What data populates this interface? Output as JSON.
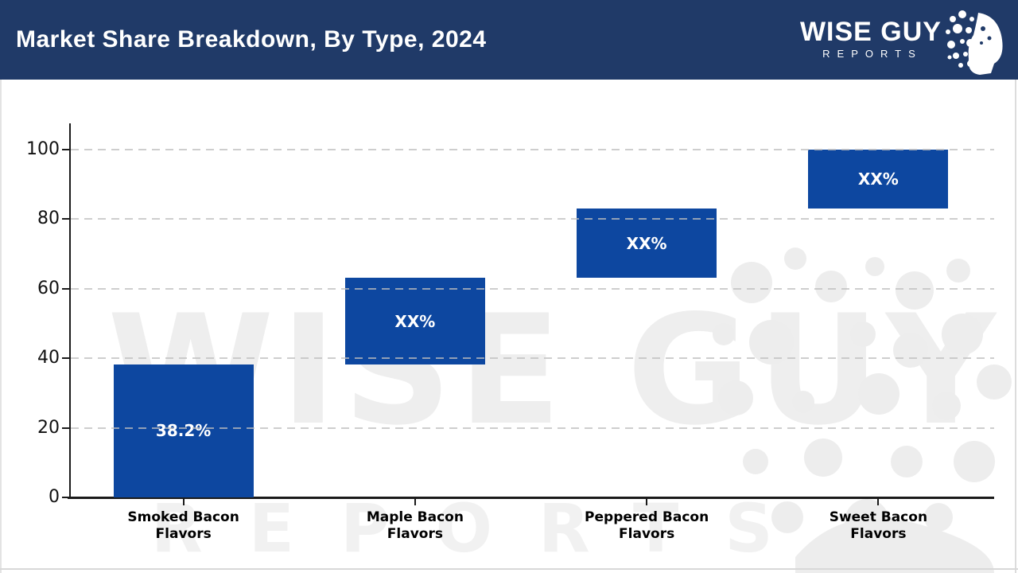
{
  "header": {
    "title": "Market Share Breakdown, By Type, 2024",
    "logo": {
      "line1": "WISE GUY",
      "line2": "REPORTS"
    }
  },
  "watermark": {
    "line1": "WISE GUY",
    "line2": "REPORTS"
  },
  "chart_data": {
    "type": "bar",
    "variant": "waterfall-floating-bars",
    "title": "Market Share Breakdown, By Type, 2024",
    "categories": [
      "Smoked Bacon Flavors",
      "Maple Bacon Flavors",
      "Peppered Bacon Flavors",
      "Sweet Bacon Flavors"
    ],
    "segments": [
      {
        "category": "Smoked Bacon Flavors",
        "start": 0,
        "end": 38.2,
        "label": "38.2%"
      },
      {
        "category": "Maple Bacon Flavors",
        "start": 38.2,
        "end": 63,
        "label": "XX%"
      },
      {
        "category": "Peppered Bacon Flavors",
        "start": 63,
        "end": 83,
        "label": "XX%"
      },
      {
        "category": "Sweet Bacon Flavors",
        "start": 83,
        "end": 100,
        "label": "XX%"
      }
    ],
    "xlabel": "",
    "ylabel": "",
    "yticks": [
      0,
      20,
      40,
      60,
      80,
      100
    ],
    "ylim": [
      0,
      107
    ],
    "grid": "horizontal-dashed",
    "legend": "none",
    "bar_color": "#0d47a0",
    "bar_label_color": "#ffffff"
  },
  "colors": {
    "header_bg": "#203a68",
    "bar": "#0d47a0",
    "grid": "#d5d5d5",
    "axis": "#1a1a1a",
    "watermark": "#eeeeee"
  }
}
